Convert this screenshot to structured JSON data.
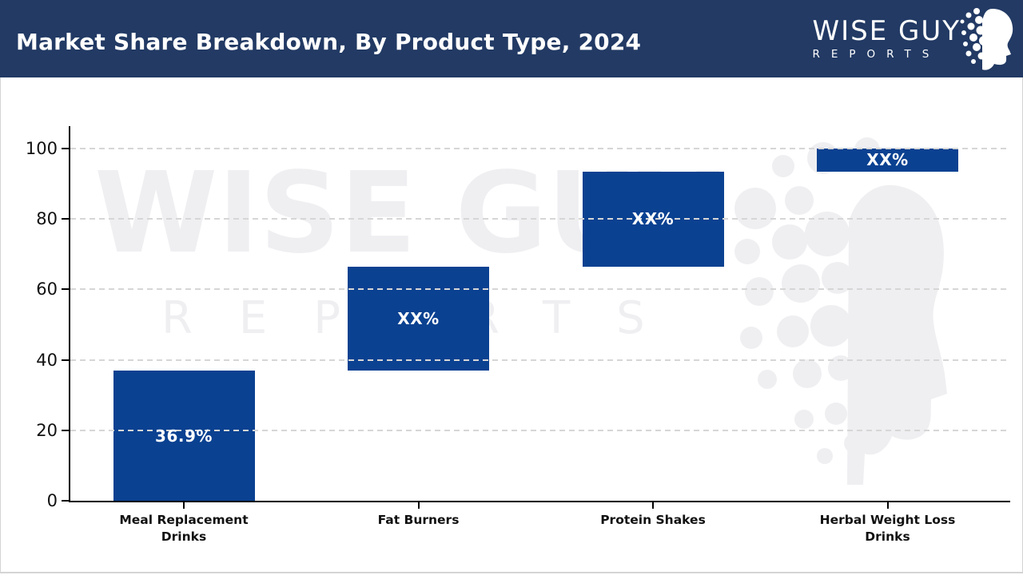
{
  "header": {
    "title": "Market Share Breakdown, By Product Type, 2024",
    "bg_color": "#223a64",
    "logo": {
      "line1": "WISE GUY",
      "line2": "REPORTS"
    }
  },
  "watermark": {
    "line1": "WISE GUY",
    "line2": "REPORTS"
  },
  "chart_data": {
    "type": "bar",
    "subtype": "waterfall",
    "title": "Market Share Breakdown, By Product Type, 2024",
    "categories": [
      "Meal Replacement Drinks",
      "Fat Burners",
      "Protein Shakes",
      "Herbal Weight Loss Drinks"
    ],
    "category_lines": [
      [
        "Meal Replacement",
        "Drinks"
      ],
      [
        "Fat Burners"
      ],
      [
        "Protein Shakes"
      ],
      [
        "Herbal Weight Loss",
        "Drinks"
      ]
    ],
    "segments": [
      {
        "category": "Meal Replacement Drinks",
        "start": 0,
        "end": 36.9,
        "label": "36.9%"
      },
      {
        "category": "Fat Burners",
        "start": 36.9,
        "end": 66.5,
        "label": "XX%"
      },
      {
        "category": "Protein Shakes",
        "start": 66.5,
        "end": 93.5,
        "label": "XX%"
      },
      {
        "category": "Herbal Weight Loss Drinks",
        "start": 93.5,
        "end": 100,
        "label": "XX%"
      }
    ],
    "y_ticks": [
      0,
      20,
      40,
      60,
      80,
      100
    ],
    "ylim": [
      0,
      107
    ],
    "xlabel": "",
    "ylabel": "",
    "legend": "none",
    "grid": "horizontal-dashed",
    "gridline_color": "#d6d6d6",
    "bar_color": "#0a4191",
    "bar_label_color": "#ffffff",
    "axis_color": "#000000",
    "tick_label_color": "#111111"
  }
}
